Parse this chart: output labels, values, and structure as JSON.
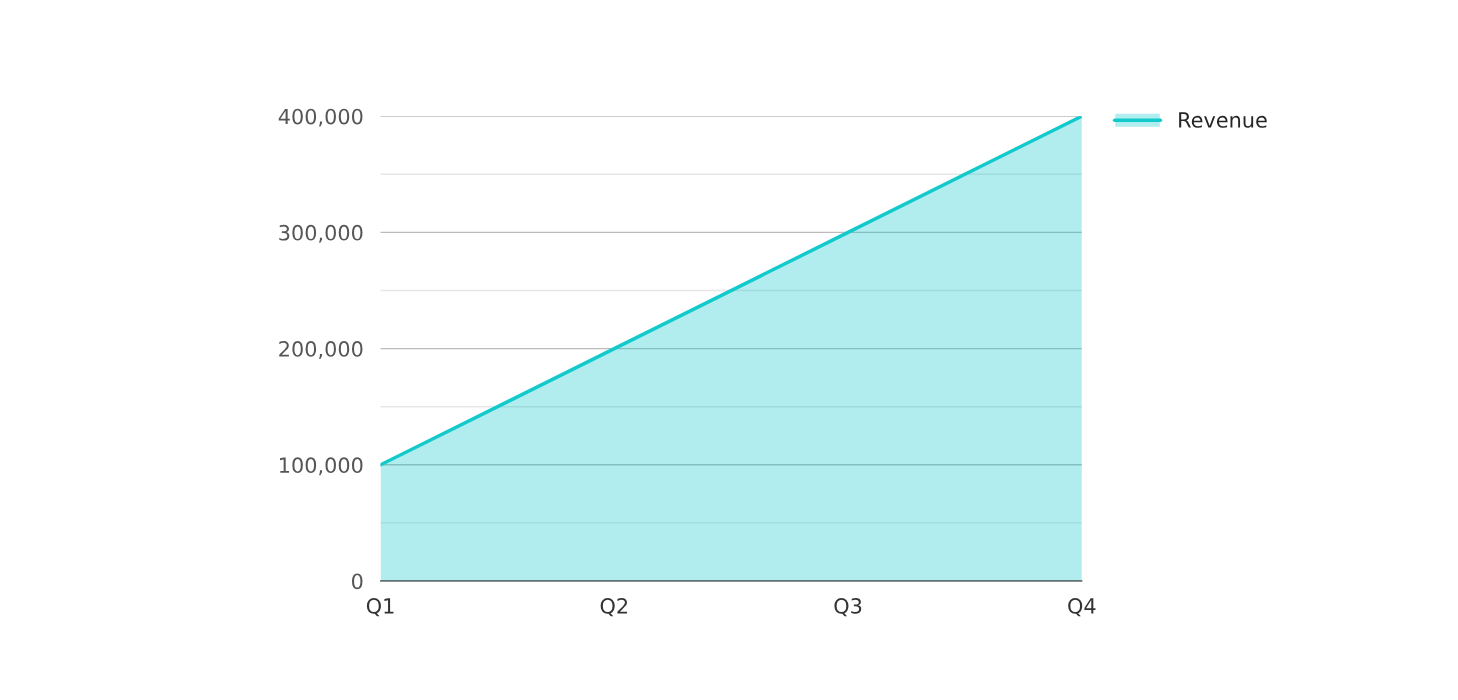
{
  "chart_data": {
    "type": "area",
    "categories": [
      "Q1",
      "Q2",
      "Q3",
      "Q4"
    ],
    "series": [
      {
        "name": "Revenue",
        "color": "#12c9cc",
        "values": [
          100000,
          200000,
          300000,
          400000
        ]
      }
    ],
    "ylim": [
      0,
      400000
    ],
    "yticks": [
      0,
      {
        "value": 50000,
        "label": null
      },
      {
        "value": 100000,
        "label": "100,000"
      },
      {
        "value": 150000,
        "label": null
      },
      {
        "value": 200000,
        "label": "200,000"
      },
      {
        "value": 250000,
        "label": null
      },
      {
        "value": 300000,
        "label": "300,000"
      },
      {
        "value": 350000,
        "label": null
      },
      {
        "value": 400000,
        "label": "400,000"
      }
    ],
    "grid": "y",
    "legend": "top right"
  }
}
